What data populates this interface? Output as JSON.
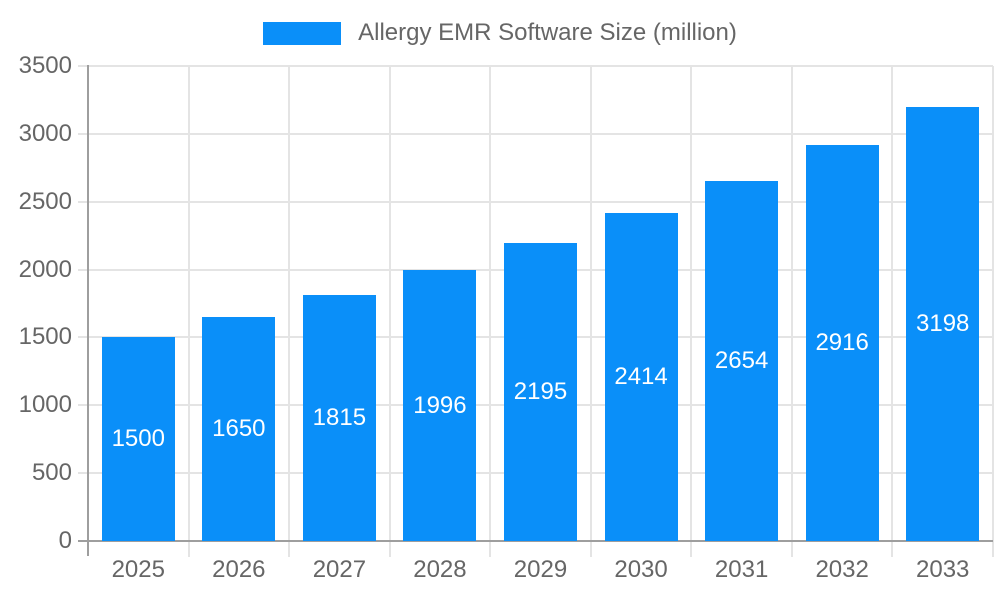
{
  "chart_data": {
    "type": "bar",
    "title": "",
    "legend_label": "Allergy EMR Software Size (million)",
    "legend_position": "top-center",
    "categories": [
      "2025",
      "2026",
      "2027",
      "2028",
      "2029",
      "2030",
      "2031",
      "2032",
      "2033"
    ],
    "series": [
      {
        "name": "Allergy EMR Software Size (million)",
        "values": [
          1500,
          1650,
          1815,
          1996,
          2195,
          2414,
          2654,
          2916,
          3198
        ]
      }
    ],
    "value_labels_visible": true,
    "value_label_position": "inside-center",
    "xlabel": "",
    "ylabel": "",
    "ylim": [
      0,
      3500
    ],
    "ytick_step": 500,
    "yticks": [
      0,
      500,
      1000,
      1500,
      2000,
      2500,
      3000,
      3500
    ],
    "grid": true
  },
  "colors": {
    "bar_fill": "#0a8ff9",
    "gridline": "#e4e4e4",
    "axis_line": "#9e9e9e",
    "tick_label_text": "#666666",
    "legend_text": "#666666",
    "value_label_text": "#ffffff",
    "background": "#ffffff"
  }
}
